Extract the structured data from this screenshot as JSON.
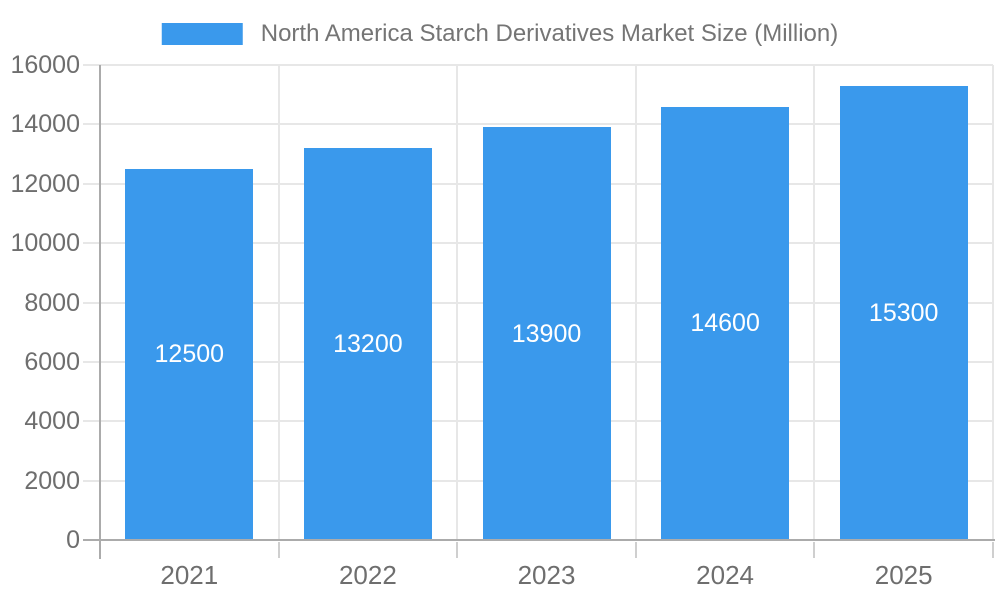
{
  "chart_data": {
    "type": "bar",
    "title": "North America Starch Derivatives Market Size (Million)",
    "categories": [
      "2021",
      "2022",
      "2023",
      "2024",
      "2025"
    ],
    "values": [
      12500,
      13200,
      13900,
      14600,
      15300
    ],
    "series": [
      {
        "name": "North America Starch Derivatives Market Size (Million)",
        "values": [
          12500,
          13200,
          13900,
          14600,
          15300
        ]
      }
    ],
    "bar_value_labels": [
      "12500",
      "13200",
      "13900",
      "14600",
      "15300"
    ],
    "xlabel": "",
    "ylabel": "",
    "ylim": [
      0,
      16000
    ],
    "ytick_step": 2000,
    "yticks": [
      0,
      2000,
      4000,
      6000,
      8000,
      10000,
      12000,
      14000,
      16000
    ],
    "legend_position": "top-center",
    "grid": "on",
    "colors": {
      "bar": "#3a99ec",
      "bar_label": "#ffffff",
      "gridline": "#e7e7e7",
      "axis_line": "#ababab",
      "minor_tick": "#cfcfcf",
      "axis_text": "#6e6e6e",
      "legend_text": "#757575",
      "background": "#ffffff"
    }
  }
}
